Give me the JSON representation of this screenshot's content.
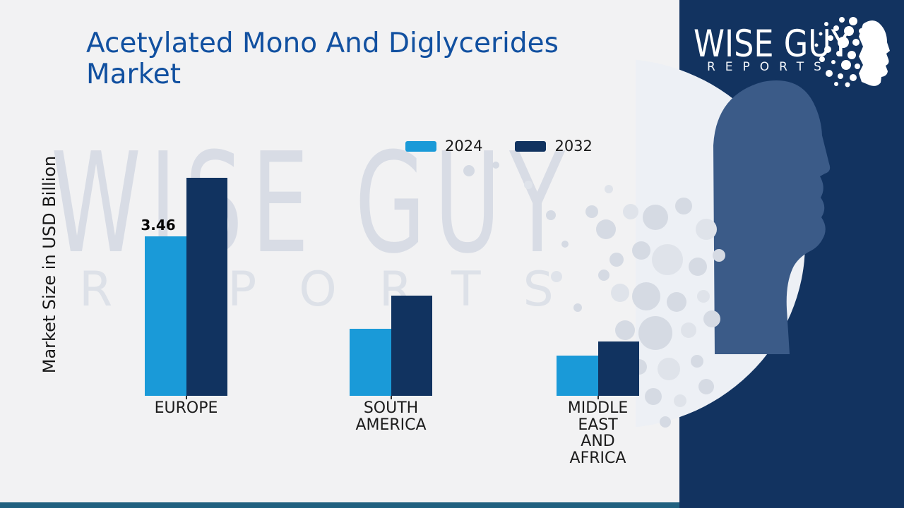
{
  "title": {
    "text": "Acetylated Mono And Diglycerides Market"
  },
  "y_axis_label": "Market Size in USD Billion",
  "legend": {
    "items": [
      {
        "label": "2024",
        "color": "#1a9ad8"
      },
      {
        "label": "2032",
        "color": "#113360"
      }
    ]
  },
  "chart_data": {
    "type": "bar",
    "title": "Acetylated Mono And Diglycerides Market",
    "ylabel": "Market Size in USD Billion",
    "categories": [
      "EUROPE",
      "SOUTH AMERICA",
      "MIDDLE EAST AND AFRICA"
    ],
    "category_label_lines": [
      [
        "EUROPE"
      ],
      [
        "SOUTH",
        "AMERICA"
      ],
      [
        "MIDDLE",
        "EAST",
        "AND",
        "AFRICA"
      ]
    ],
    "series": [
      {
        "name": "2024",
        "color": "#1a9ad8",
        "values": [
          3.46,
          1.45,
          0.87
        ]
      },
      {
        "name": "2032",
        "color": "#113360",
        "values": [
          4.73,
          2.17,
          1.18
        ]
      }
    ],
    "bar_labels": [
      {
        "series": "2024",
        "category": "EUROPE",
        "text": "3.46"
      }
    ],
    "ylim": [
      0,
      5
    ],
    "grid": false,
    "legend_position": "top-center"
  },
  "watermark": {
    "line1": "WISE GUY",
    "line2": "REPORTS"
  },
  "brand": {
    "line1": "WISE GUY",
    "line2": "REPORTS"
  },
  "colors": {
    "background": "#f2f2f3",
    "title": "#1150a0",
    "bar_2024": "#1a9ad8",
    "bar_2032": "#113360",
    "panel": "#123360",
    "bottom_strip": "#20607f",
    "watermark": "#d8dce5",
    "circle": "#edf0f5",
    "blob": "#d5dae3",
    "face_silhouette": "#3b5b88"
  }
}
